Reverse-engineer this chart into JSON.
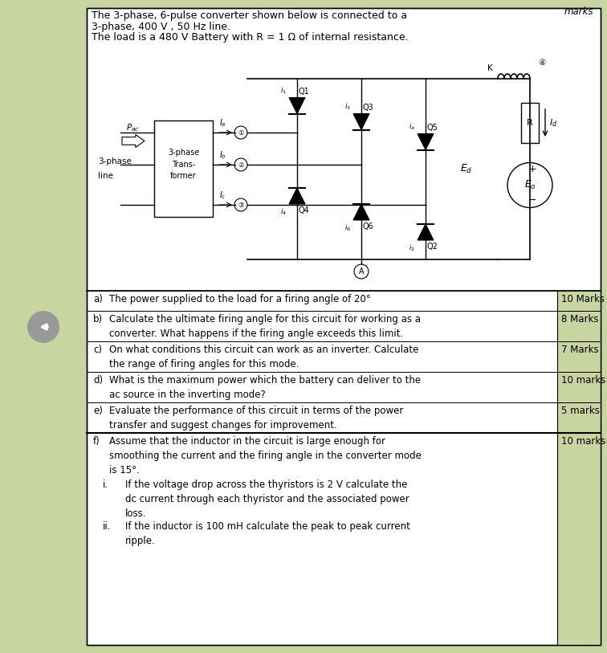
{
  "bg_color": "#c8d5a0",
  "white_bg": "#ffffff",
  "table_bg": "#dde5cc",
  "header_text_line1": "The 3-phase, 6-pulse converter shown below is connected to a",
  "header_text_line2": "3-phase, 400 V , 50 Hz line.",
  "header_text_line3": "The load is a 480 V Battery with R = 1 Ω of internal resistance.",
  "marks_header": "marks",
  "questions": [
    {
      "label": "a)",
      "text": "The power supplied to the load for a firing angle of 20°",
      "marks": "10 Marks",
      "lines": 1
    },
    {
      "label": "b)",
      "text": "Calculate the ultimate firing angle for this circuit for working as a\nconverter. What happens if the firing angle exceeds this limit.",
      "marks": "8 Marks",
      "lines": 2
    },
    {
      "label": "c)",
      "text": "On what conditions this circuit can work as an inverter. Calculate\nthe range of firing angles for this mode.",
      "marks": "7 Marks",
      "lines": 2
    },
    {
      "label": "d)",
      "text": "What is the maximum power which the battery can deliver to the\nac source in the inverting mode?",
      "marks": "10 marks",
      "lines": 2
    },
    {
      "label": "e)",
      "text": "Evaluate the performance of this circuit in terms of the power\ntransfer and suggest changes for improvement.",
      "marks": "5 marks",
      "lines": 2
    }
  ],
  "question_f_label": "f)",
  "question_f_text": "Assume that the inductor in the circuit is large enough for\nsmoothing the current and the firing angle in the converter mode\nis 15°.",
  "question_f_marks": "10 marks",
  "sub_i_label": "i.",
  "sub_i_text": "If the voltage drop across the thyristors is 2 V calculate the\ndc current through each thyristor and the associated power\nloss.",
  "sub_ii_label": "ii.",
  "sub_ii_text": "If the inductor is 100 mH calculate the peak to peak current\nripple.",
  "figw": 7.56,
  "figh": 8.13,
  "dpi": 100
}
